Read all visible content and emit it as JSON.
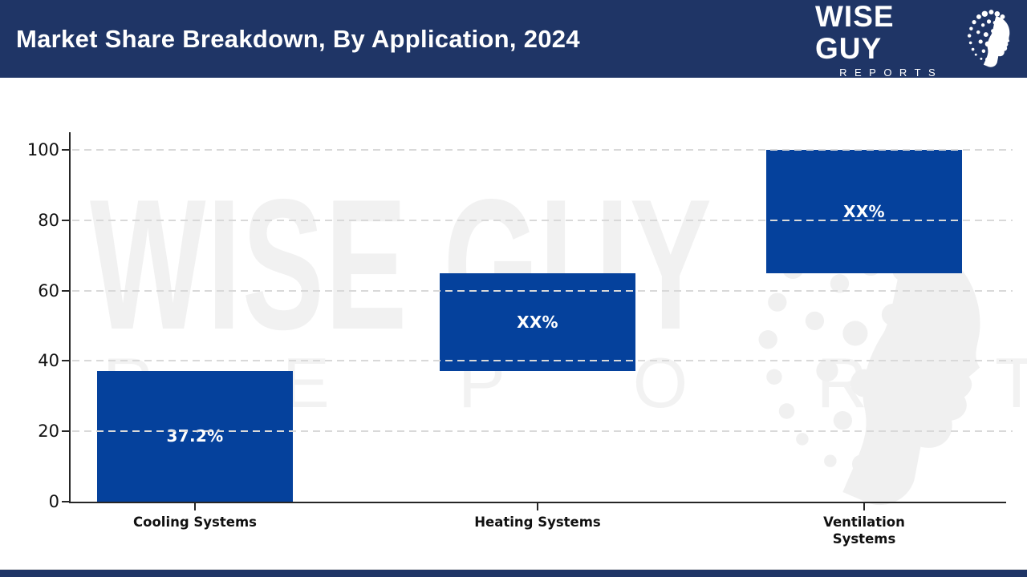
{
  "header": {
    "title": "Market Share Breakdown, By Application, 2024",
    "logo": {
      "line1": "WISE GUY",
      "line2": "REPORTS"
    }
  },
  "watermark": {
    "line1": "WISE GUY",
    "line2": "R E P O R T S"
  },
  "chart_data": {
    "type": "bar",
    "variant": "floating-waterfall-segments",
    "title": "Market Share Breakdown, By Application, 2024",
    "categories": [
      "Cooling Systems",
      "Heating Systems",
      "Ventilation Systems"
    ],
    "segments": [
      {
        "category": "Cooling Systems",
        "start": 0,
        "end": 37.2,
        "label": "37.2%"
      },
      {
        "category": "Heating Systems",
        "start": 37.2,
        "end": 65,
        "label": "XX%"
      },
      {
        "category": "Ventilation Systems",
        "start": 65,
        "end": 100,
        "label": "XX%"
      }
    ],
    "ylim": [
      0,
      100
    ],
    "yticks": [
      0,
      20,
      40,
      60,
      80,
      100
    ],
    "xlabel": "",
    "ylabel": "",
    "grid": "horizontal-dashed-over-bars",
    "legend": "none",
    "bar_color": "#05419c"
  },
  "colors": {
    "header_navy": "#1f3566",
    "bar_blue": "#05419c",
    "grid_gray": "#d9d9d9",
    "axis_text": "#111111",
    "bar_label_white": "#ffffff",
    "watermark_gray": "#f1f1f1"
  }
}
